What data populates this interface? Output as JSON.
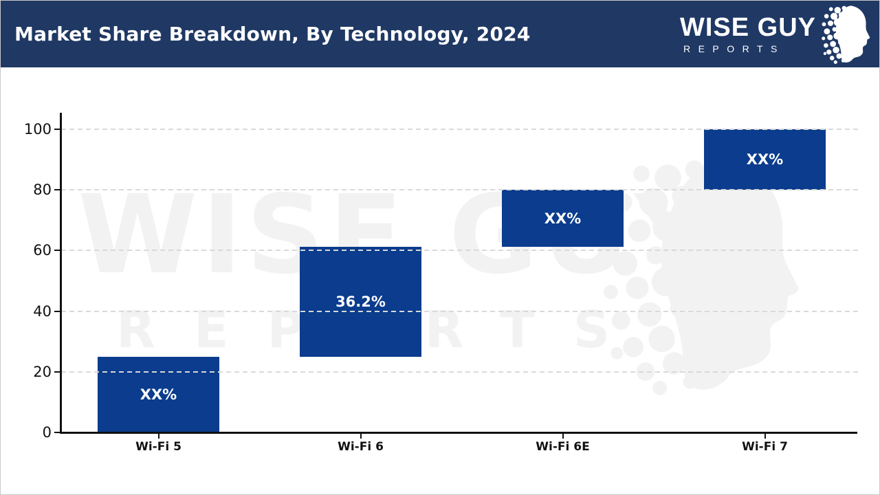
{
  "header": {
    "title": "Market Share Breakdown, By Technology, 2024",
    "bg_color": "#1f3864",
    "logo": {
      "line1": "WISE GUY",
      "line2": "REPORTS"
    }
  },
  "watermark": {
    "line1": "WISE GUY",
    "line2": "REPORTS"
  },
  "chart_data": {
    "type": "bar",
    "variant": "waterfall",
    "title": "Market Share Breakdown, By Technology, 2024",
    "categories": [
      "Wi-Fi 5",
      "Wi-Fi 6",
      "Wi-Fi 6E",
      "Wi-Fi 7"
    ],
    "segments": [
      {
        "category": "Wi-Fi 5",
        "start": 0,
        "end": 25,
        "label": "XX%"
      },
      {
        "category": "Wi-Fi 6",
        "start": 25,
        "end": 61.2,
        "label": "36.2%",
        "value": 36.2
      },
      {
        "category": "Wi-Fi 6E",
        "start": 61.2,
        "end": 80,
        "label": "XX%"
      },
      {
        "category": "Wi-Fi 7",
        "start": 80,
        "end": 100,
        "label": "XX%"
      }
    ],
    "xlabel": "",
    "ylabel": "",
    "yticks": [
      0,
      20,
      40,
      60,
      80,
      100
    ],
    "ylim": [
      0,
      105.5
    ],
    "grid": "horizontal-dashed",
    "legend": "none",
    "bar_color": "#0b3c8d",
    "gridline_color": "#d9d9d9",
    "axis_color": "#111111"
  }
}
